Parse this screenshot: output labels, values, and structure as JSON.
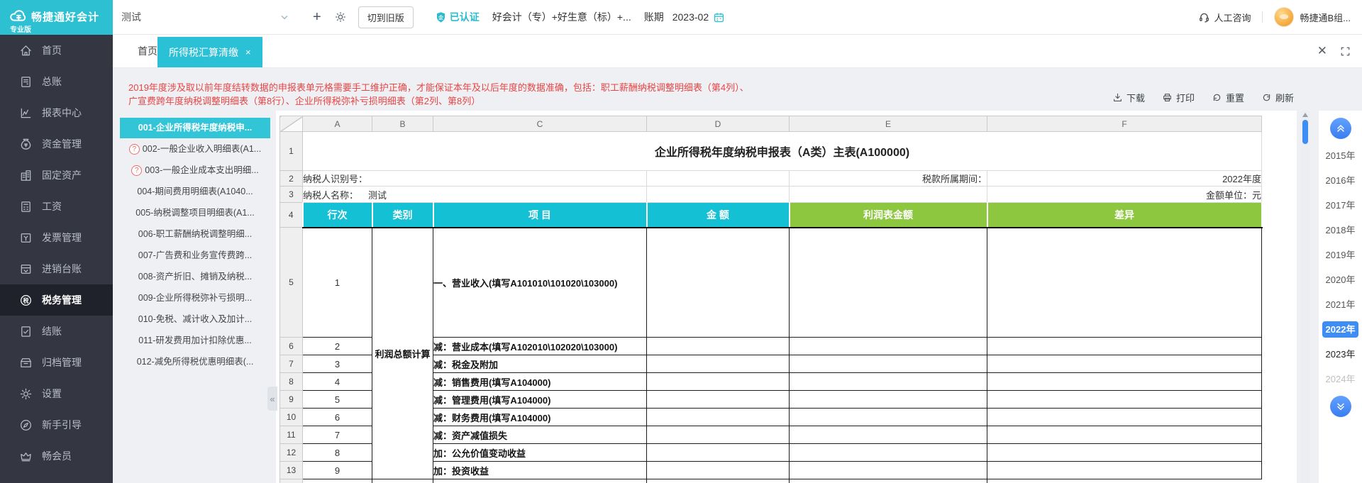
{
  "colors": {
    "primary_teal": "#2cc0d2",
    "header_cyan": "#13c0d4",
    "header_green": "#8dc63f",
    "warning_red": "#e84545",
    "active_blue": "#3d8df5",
    "sidebar_bg": "#343642"
  },
  "glyphs": {
    "plus": "+",
    "tab_close": "×",
    "window_close": "✕",
    "collapse": "«",
    "help": "?"
  },
  "topbar": {
    "logo_title": "畅捷通好会计",
    "logo_subtitle": "专业版",
    "account_name": "测试",
    "switch_old_label": "切到旧版",
    "certified_label": "已认证",
    "plan_label": "好会计（专）+好生意（标）+...",
    "period_label": "账期",
    "period_value": "2023-02",
    "support_label": "人工咨询",
    "user_name": "畅捷通B组..."
  },
  "sidebar": {
    "items": [
      {
        "key": "home",
        "icon": "home-icon",
        "label": "首页",
        "active": false
      },
      {
        "key": "ledger",
        "icon": "ledger-icon",
        "label": "总账",
        "active": false
      },
      {
        "key": "reports",
        "icon": "report-chart-icon",
        "label": "报表中心",
        "active": false
      },
      {
        "key": "funds",
        "icon": "money-bag-icon",
        "label": "资金管理",
        "active": false
      },
      {
        "key": "assets",
        "icon": "building-icon",
        "label": "固定资产",
        "active": false
      },
      {
        "key": "salary",
        "icon": "calculator-icon",
        "label": "工资",
        "active": false
      },
      {
        "key": "invoice",
        "icon": "invoice-icon",
        "label": "发票管理",
        "active": false
      },
      {
        "key": "trade",
        "icon": "trade-ledger-icon",
        "label": "进销台账",
        "active": false
      },
      {
        "key": "tax",
        "icon": "tax-coin-icon",
        "label": "税务管理",
        "active": true
      },
      {
        "key": "closing",
        "icon": "book-check-icon",
        "label": "结账",
        "active": false
      },
      {
        "key": "archive",
        "icon": "archive-icon",
        "label": "归档管理",
        "active": false
      },
      {
        "key": "settings",
        "icon": "gear-icon",
        "label": "设置",
        "active": false
      },
      {
        "key": "guide",
        "icon": "compass-icon",
        "label": "新手引导",
        "active": false
      },
      {
        "key": "member",
        "icon": "crown-icon",
        "label": "畅会员",
        "active": false
      }
    ]
  },
  "tabs": {
    "home_label": "首页",
    "active_label": "所得税汇算清缴"
  },
  "warning_text": "2019年度涉及取以前年度结转数据的申报表单元格需要手工维护正确，才能保证本年及以后年度的数据准确，包括：职工薪酬纳税调整明细表（第4列）、广宣费跨年度纳税调整明细表（第8行）、企业所得税弥补亏损明细表（第2列、第8列）",
  "toolbar": [
    {
      "key": "download",
      "icon": "download-icon",
      "label": "下载"
    },
    {
      "key": "print",
      "icon": "printer-icon",
      "label": "打印"
    },
    {
      "key": "reset",
      "icon": "reset-icon",
      "label": "重置"
    },
    {
      "key": "refresh",
      "icon": "refresh-icon",
      "label": "刷新"
    }
  ],
  "report_list": {
    "items": [
      {
        "label": "001-企业所得税年度纳税申...",
        "active": true,
        "help": false
      },
      {
        "label": "002-一般企业收入明细表(A1...",
        "active": false,
        "help": true
      },
      {
        "label": "003-一般企业成本支出明细...",
        "active": false,
        "help": true
      },
      {
        "label": "004-期间费用明细表(A1040...",
        "active": false,
        "help": false
      },
      {
        "label": "005-纳税调整项目明细表(A1...",
        "active": false,
        "help": false
      },
      {
        "label": "006-职工薪酬纳税调整明细...",
        "active": false,
        "help": false
      },
      {
        "label": "007-广告费和业务宣传费跨...",
        "active": false,
        "help": false
      },
      {
        "label": "008-资产折旧、摊销及纳税...",
        "active": false,
        "help": false
      },
      {
        "label": "009-企业所得税弥补亏损明...",
        "active": false,
        "help": false
      },
      {
        "label": "010-免税、减计收入及加计...",
        "active": false,
        "help": false
      },
      {
        "label": "011-研发费用加计扣除优惠...",
        "active": false,
        "help": false
      },
      {
        "label": "012-减免所得税优惠明细表(...",
        "active": false,
        "help": false
      }
    ]
  },
  "sheet": {
    "columns": [
      "A",
      "B",
      "C",
      "D",
      "E",
      "F"
    ],
    "row_nums": [
      "1",
      "2",
      "3",
      "4",
      "5",
      "6",
      "7",
      "8",
      "9",
      "10",
      "11",
      "12",
      "13"
    ],
    "title": "企业所得税年度纳税申报表（A类）主表(A100000)",
    "row2": {
      "label_left": "纳税人识别号：",
      "label_right": "税款所属期间：",
      "value_right": "2022年度"
    },
    "row3": {
      "label_left": "纳税人名称：",
      "value_left": "测试",
      "label_right": "金额单位：元"
    },
    "header": [
      "行次",
      "类别",
      "项    目",
      "金    额",
      "利润表金额",
      "差异"
    ],
    "category_merged": "利润总额计算",
    "body_rows": [
      {
        "num": "5",
        "line": "1",
        "item": "一、营业收入(填写A101010\\101020\\103000)"
      },
      {
        "num": "6",
        "line": "2",
        "item": "减：营业成本(填写A102010\\102020\\103000)"
      },
      {
        "num": "7",
        "line": "3",
        "item": "减：税金及附加"
      },
      {
        "num": "8",
        "line": "4",
        "item": "减：销售费用(填写A104000)"
      },
      {
        "num": "9",
        "line": "5",
        "item": "减：管理费用(填写A104000)"
      },
      {
        "num": "10",
        "line": "6",
        "item": "减：财务费用(填写A104000)"
      },
      {
        "num": "11",
        "line": "7",
        "item": "减：资产减值损失"
      },
      {
        "num": "12",
        "line": "8",
        "item": "加：公允价值变动收益"
      },
      {
        "num": "13",
        "line": "9",
        "item": "加：投资收益"
      }
    ]
  },
  "year_panel": {
    "years": [
      {
        "label": "2015年",
        "state": "normal"
      },
      {
        "label": "2016年",
        "state": "normal"
      },
      {
        "label": "2017年",
        "state": "normal"
      },
      {
        "label": "2018年",
        "state": "normal"
      },
      {
        "label": "2019年",
        "state": "normal"
      },
      {
        "label": "2020年",
        "state": "normal"
      },
      {
        "label": "2021年",
        "state": "normal"
      },
      {
        "label": "2022年",
        "state": "active"
      },
      {
        "label": "2023年",
        "state": "next"
      },
      {
        "label": "2024年",
        "state": "disabled"
      }
    ]
  }
}
